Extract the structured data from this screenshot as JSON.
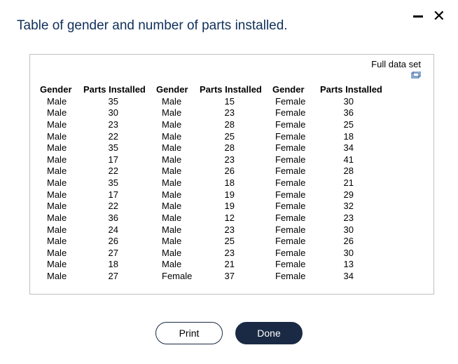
{
  "window": {
    "title": "Table of gender and number of parts installed.",
    "title_color": "#10305a",
    "title_fontsize": 19
  },
  "panel": {
    "full_data_set_label": "Full data set",
    "border_color": "#c0c0c0",
    "background_color": "#ffffff"
  },
  "table": {
    "type": "table",
    "headers": {
      "gender": "Gender",
      "parts": "Parts Installed"
    },
    "fontsize": 13,
    "text_color": "#000000",
    "columns": [
      {
        "rows": [
          {
            "gender": "Male",
            "parts": 35
          },
          {
            "gender": "Male",
            "parts": 30
          },
          {
            "gender": "Male",
            "parts": 23
          },
          {
            "gender": "Male",
            "parts": 22
          },
          {
            "gender": "Male",
            "parts": 35
          },
          {
            "gender": "Male",
            "parts": 17
          },
          {
            "gender": "Male",
            "parts": 22
          },
          {
            "gender": "Male",
            "parts": 35
          },
          {
            "gender": "Male",
            "parts": 17
          },
          {
            "gender": "Male",
            "parts": 22
          },
          {
            "gender": "Male",
            "parts": 36
          },
          {
            "gender": "Male",
            "parts": 24
          },
          {
            "gender": "Male",
            "parts": 26
          },
          {
            "gender": "Male",
            "parts": 27
          },
          {
            "gender": "Male",
            "parts": 18
          },
          {
            "gender": "Male",
            "parts": 27
          }
        ]
      },
      {
        "rows": [
          {
            "gender": "Male",
            "parts": 15
          },
          {
            "gender": "Male",
            "parts": 23
          },
          {
            "gender": "Male",
            "parts": 28
          },
          {
            "gender": "Male",
            "parts": 25
          },
          {
            "gender": "Male",
            "parts": 28
          },
          {
            "gender": "Male",
            "parts": 23
          },
          {
            "gender": "Male",
            "parts": 26
          },
          {
            "gender": "Male",
            "parts": 18
          },
          {
            "gender": "Male",
            "parts": 19
          },
          {
            "gender": "Male",
            "parts": 19
          },
          {
            "gender": "Male",
            "parts": 12
          },
          {
            "gender": "Male",
            "parts": 23
          },
          {
            "gender": "Male",
            "parts": 25
          },
          {
            "gender": "Male",
            "parts": 23
          },
          {
            "gender": "Male",
            "parts": 21
          },
          {
            "gender": "Female",
            "parts": 37
          }
        ]
      },
      {
        "rows": [
          {
            "gender": "Female",
            "parts": 30
          },
          {
            "gender": "Female",
            "parts": 36
          },
          {
            "gender": "Female",
            "parts": 25
          },
          {
            "gender": "Female",
            "parts": 18
          },
          {
            "gender": "Female",
            "parts": 34
          },
          {
            "gender": "Female",
            "parts": 41
          },
          {
            "gender": "Female",
            "parts": 28
          },
          {
            "gender": "Female",
            "parts": 21
          },
          {
            "gender": "Female",
            "parts": 29
          },
          {
            "gender": "Female",
            "parts": 32
          },
          {
            "gender": "Female",
            "parts": 23
          },
          {
            "gender": "Female",
            "parts": 30
          },
          {
            "gender": "Female",
            "parts": 26
          },
          {
            "gender": "Female",
            "parts": 30
          },
          {
            "gender": "Female",
            "parts": 13
          },
          {
            "gender": "Female",
            "parts": 34
          }
        ]
      }
    ]
  },
  "buttons": {
    "print_label": "Print",
    "done_label": "Done",
    "print_bg": "#ffffff",
    "print_border": "#1b2a44",
    "done_bg": "#1a2a44",
    "done_fg": "#ffffff",
    "radius": 16
  },
  "icons": {
    "expand_color": "#3a6aa8"
  }
}
